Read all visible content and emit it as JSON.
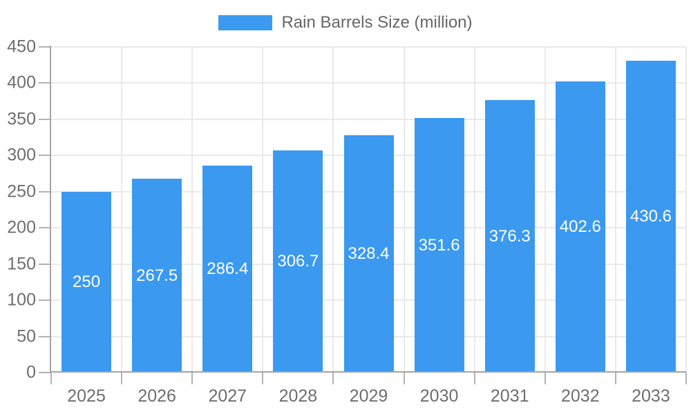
{
  "legend": {
    "label": "Rain Barrels Size (million)"
  },
  "colors": {
    "bar": "#3b99f0",
    "axis_line": "#a3a3a3",
    "grid_line": "#e9e9e9",
    "tick_mark": "#b3b3b3",
    "axis_label_text": "#6e6e6e",
    "legend_text": "#666666",
    "value_label_text": "#ffffff",
    "background": "#ffffff"
  },
  "chart_data": {
    "type": "bar",
    "title": "Rain Barrels Size (million)",
    "series_name": "Rain Barrels Size (million)",
    "categories": [
      "2025",
      "2026",
      "2027",
      "2028",
      "2029",
      "2030",
      "2031",
      "2032",
      "2033"
    ],
    "values": [
      250,
      267.5,
      286.4,
      306.7,
      328.4,
      351.6,
      376.3,
      402.6,
      430.6
    ],
    "value_labels": [
      "250",
      "267.5",
      "286.4",
      "306.7",
      "328.4",
      "351.6",
      "376.3",
      "402.6",
      "430.6"
    ],
    "xlabel": "",
    "ylabel": "",
    "ylim": [
      0,
      450
    ],
    "ytick_step": 50,
    "yticks": [
      0,
      50,
      100,
      150,
      200,
      250,
      300,
      350,
      400,
      450
    ],
    "grid": true,
    "legend_position": "top",
    "value_label_position": "center-of-bar"
  }
}
